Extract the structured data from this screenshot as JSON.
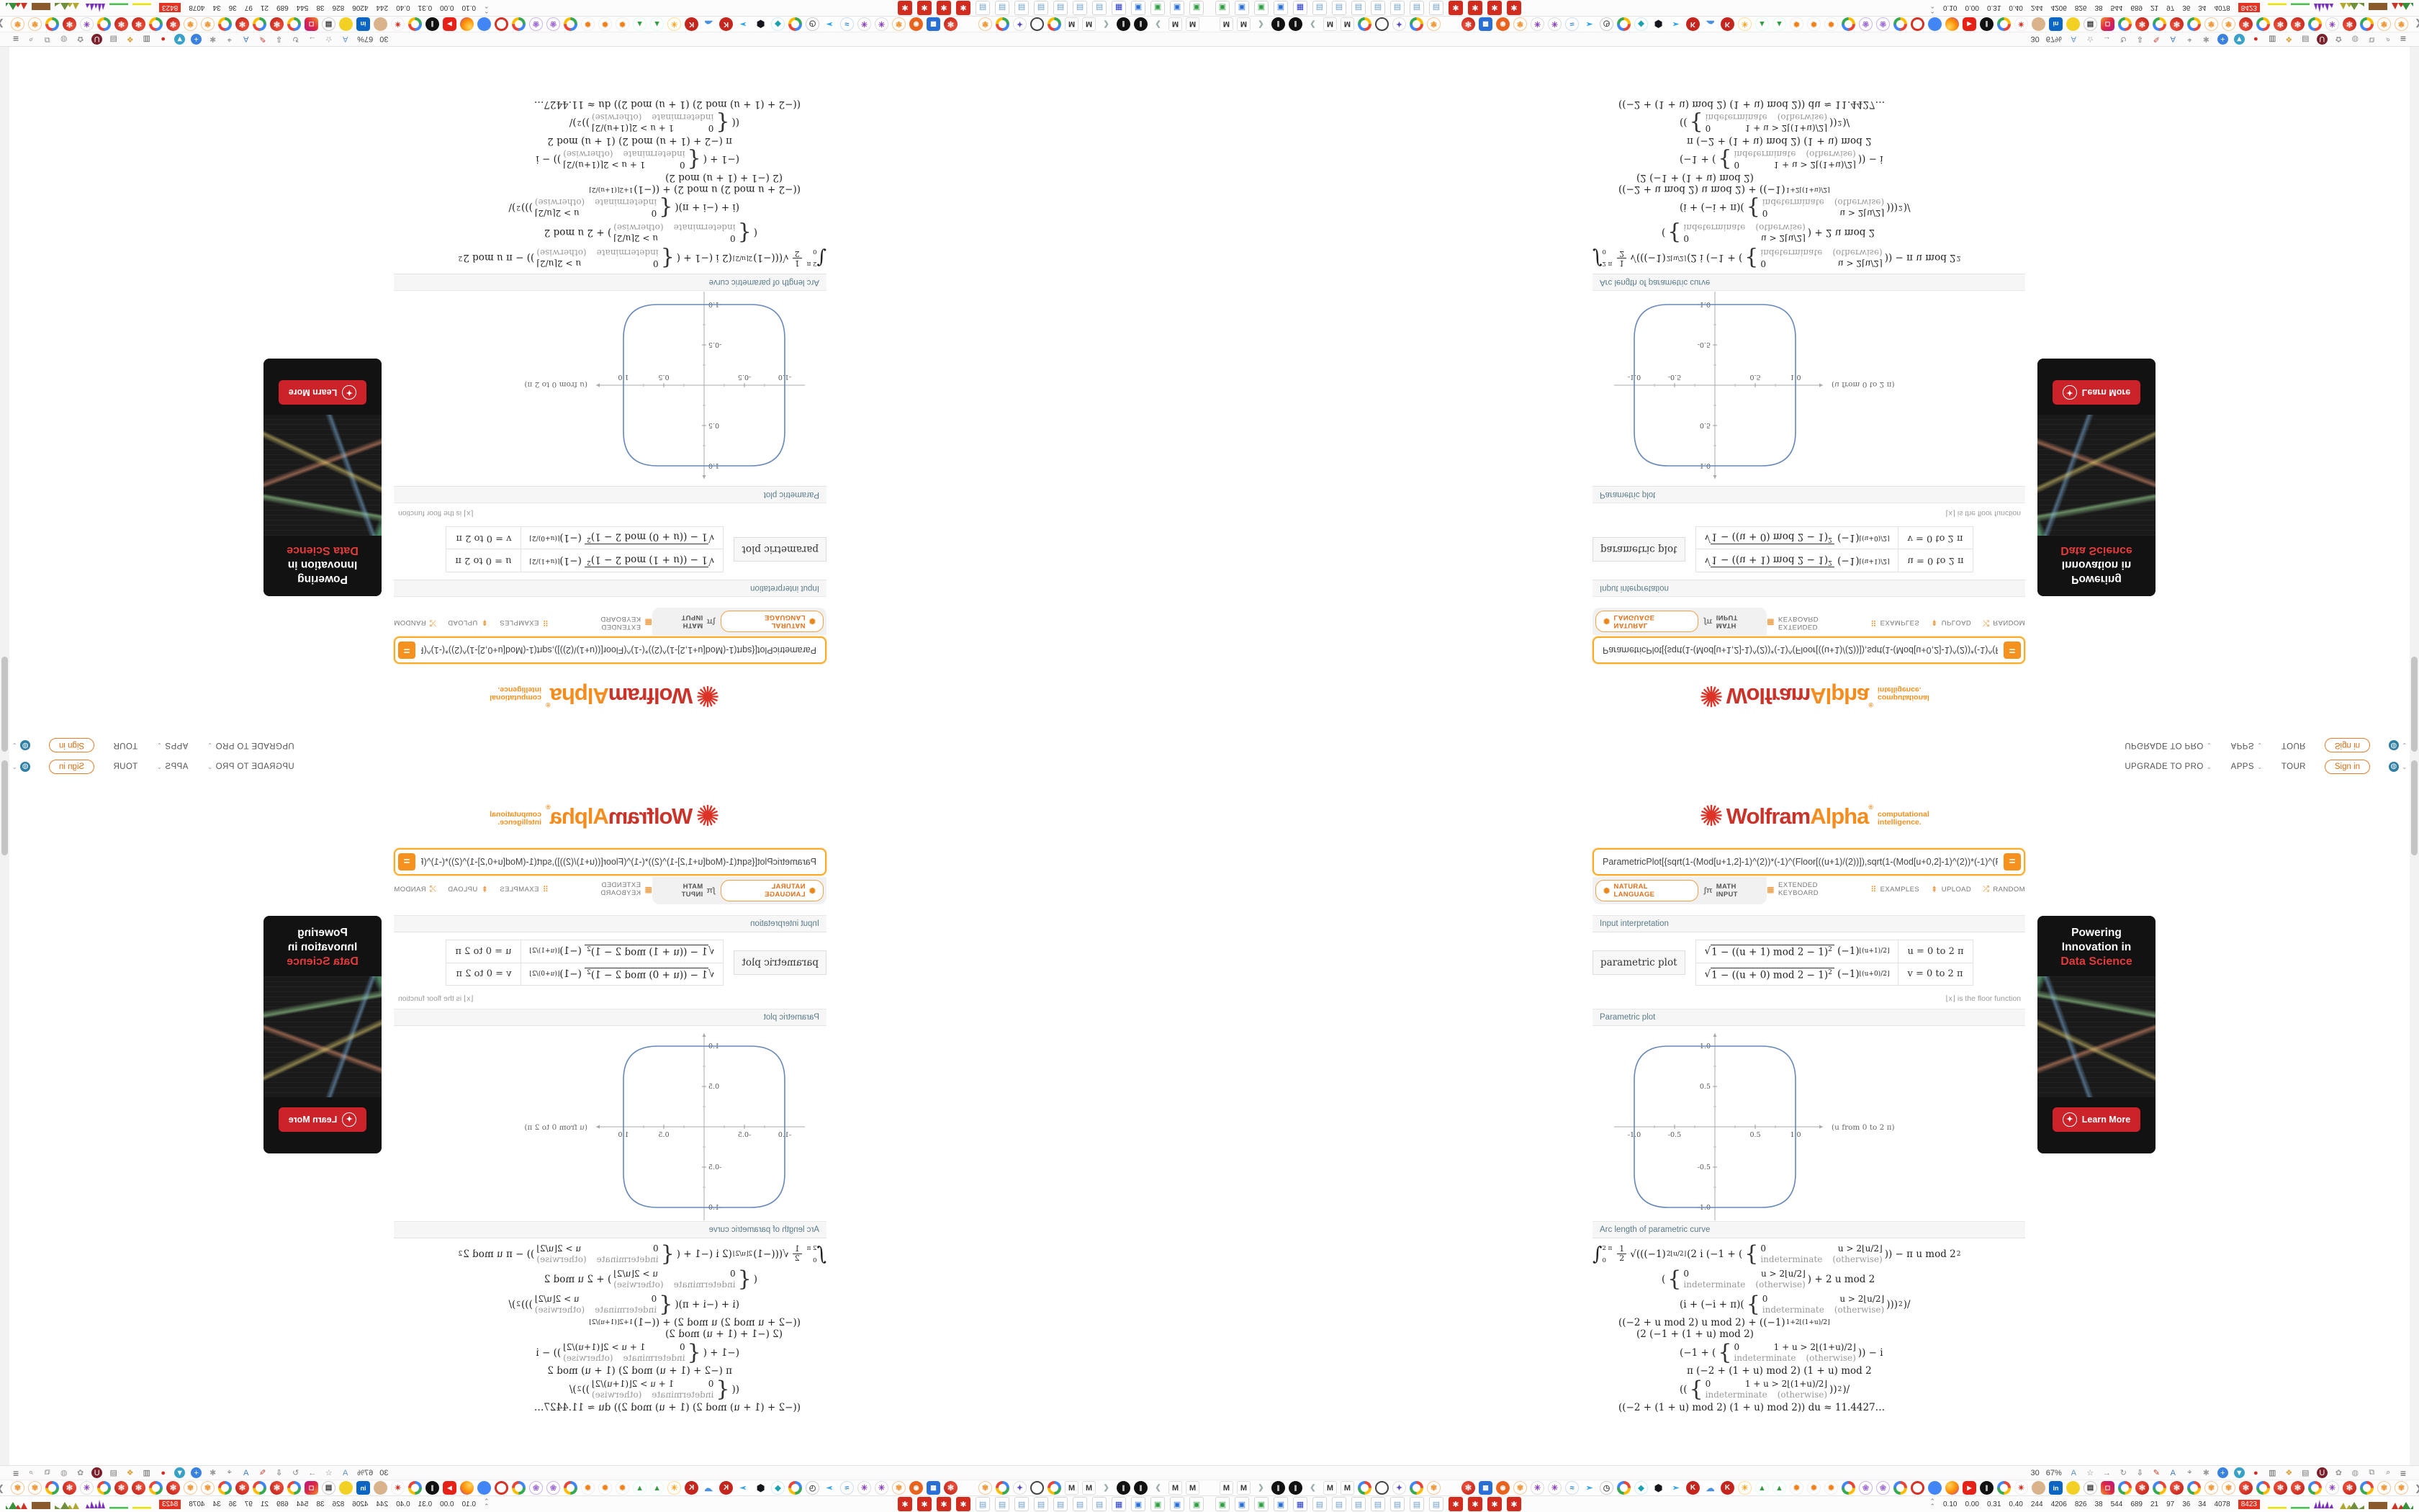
{
  "chrome": {
    "toolbar": {
      "zoom_text": "30",
      "percent": "67%",
      "menu_icon": "≡",
      "icons": [
        {
          "name": "translate-icon",
          "g": "A",
          "c": "#5b8dd6"
        },
        {
          "name": "bookmark-star-icon",
          "g": "☆",
          "c": "#888"
        },
        {
          "name": "forward-icon",
          "g": "→",
          "c": "#888"
        },
        {
          "name": "reload-icon",
          "g": "↻",
          "c": "#888"
        },
        {
          "name": "download-icon",
          "g": "⇩",
          "c": "#555"
        },
        {
          "name": "highlighter-icon",
          "g": "✎",
          "c": "#c0392b"
        },
        {
          "name": "translate-blue-icon",
          "g": "A",
          "c": "#3c78c8"
        },
        {
          "name": "mouse-gesture-icon",
          "g": "⌖",
          "c": "#777"
        },
        {
          "name": "settings-small-icon",
          "g": "✱",
          "c": "#999"
        },
        {
          "name": "add-extension-icon",
          "g": "+",
          "c": "#fff",
          "bg": "#3b82e0"
        },
        {
          "name": "shield-icon",
          "g": "▼",
          "c": "#fff",
          "bg": "#38a1c8"
        },
        {
          "name": "record-icon",
          "g": "●",
          "c": "#d22c20"
        },
        {
          "name": "columns-icon",
          "g": "▥",
          "c": "#555"
        },
        {
          "name": "sync-icon",
          "g": "❖",
          "c": "#d8a23a"
        },
        {
          "name": "notes-icon",
          "g": "▤",
          "c": "#777"
        },
        {
          "name": "ublock-icon",
          "g": "U",
          "c": "#fff",
          "bg": "#7a1f2b"
        },
        {
          "name": "extension-flower-icon",
          "g": "✿",
          "c": "#999"
        },
        {
          "name": "web-globe-icon",
          "g": "◍",
          "c": "#999"
        },
        {
          "name": "popup-window-icon",
          "g": "⧉",
          "c": "#888"
        },
        {
          "name": "search-icon",
          "g": "⌕",
          "c": "#666"
        }
      ]
    },
    "tabbar": {
      "overflow_next": "❯",
      "overflow_up": "⌃",
      "favicons": [
        "m",
        "m",
        "media-next",
        "pauseb",
        "pauseb",
        "media-prev",
        "m",
        "m",
        "google",
        "target",
        "knot",
        "chrome-c",
        "flower",
        "gap",
        "wolfram",
        "cart",
        "radio",
        "flower",
        "spiro",
        "spiro",
        "wave",
        "bird",
        "clock",
        "chrome-c",
        "cyan",
        "hex",
        "bird",
        "kred",
        "cloud",
        "kred",
        "suns",
        "mountain",
        "mountain",
        "gearo",
        "gearo",
        "gearo",
        "google",
        "pflower",
        "pflower",
        "google",
        "redo",
        "bluec",
        "firefox",
        "youtube",
        "pauseb",
        "google",
        "redstar",
        "avatar",
        "linkedin",
        "pacman",
        "news",
        "instagram",
        "google",
        "wolfram",
        "google",
        "wolfram",
        "google",
        "flower",
        "flower",
        "wolfram",
        "google",
        "wolfram",
        "wolfram",
        "google",
        "spiro",
        "wolfram",
        "google",
        "flower",
        "flower"
      ]
    },
    "statusbar": {
      "expand_icon": "⌃",
      "numbers": [
        "0.10",
        "0.00",
        "0.31",
        "0.40",
        "244",
        "4206",
        "826",
        "38",
        "544",
        "689",
        "21",
        "97",
        "36",
        "34",
        "4078"
      ],
      "badge": "8423",
      "sparklines": [
        {
          "name": "yellow-line",
          "type": "line",
          "color": "#e8e400",
          "w": 26
        },
        {
          "name": "green-line",
          "type": "line",
          "color": "#44c24a",
          "w": 26
        },
        {
          "name": "purple-peaks",
          "type": "peaks",
          "color": "#7b2fbe",
          "w": 30
        },
        {
          "name": "olive-mountains",
          "type": "mountains",
          "color": "#b0a832",
          "color2": "#6f8f3a",
          "w": 34
        },
        {
          "name": "brown-block",
          "type": "block",
          "color": "#8a5a2b",
          "w": 26
        },
        {
          "name": "red-green-mountains",
          "type": "mountains",
          "color": "#cc3322",
          "color2": "#3a8f3a",
          "w": 30
        }
      ],
      "taskbar_icons": [
        {
          "name": "monitor-green-icon",
          "g": "▣",
          "c": "#2f9e44"
        },
        {
          "name": "monitor-blue-icon",
          "g": "▣",
          "c": "#2a6fd6"
        },
        {
          "name": "monitor-green2-icon",
          "g": "▣",
          "c": "#2f9e44"
        },
        {
          "name": "monitor-blue2-icon",
          "g": "▣",
          "c": "#2a6fd6"
        },
        {
          "name": "floppy-icon",
          "g": "▦",
          "c": "#2438c8"
        },
        {
          "name": "document-icon",
          "g": "▤",
          "c": "#6f9ec8"
        },
        {
          "name": "document-icon",
          "g": "▤",
          "c": "#6f9ec8"
        },
        {
          "name": "document-icon",
          "g": "▤",
          "c": "#6f9ec8"
        },
        {
          "name": "document-icon",
          "g": "▤",
          "c": "#6f9ec8"
        },
        {
          "name": "document-icon",
          "g": "▤",
          "c": "#6f9ec8"
        },
        {
          "name": "document-icon",
          "g": "▤",
          "c": "#6f9ec8"
        },
        {
          "name": "document-icon",
          "g": "▤",
          "c": "#6f9ec8"
        },
        {
          "name": "gear-red-icon",
          "g": "✱",
          "c": "#fff",
          "bg": "#d22c20"
        },
        {
          "name": "gear-red-icon",
          "g": "✱",
          "c": "#fff",
          "bg": "#d22c20"
        },
        {
          "name": "gear-red-icon",
          "g": "✱",
          "c": "#fff",
          "bg": "#d22c20"
        },
        {
          "name": "gear-red-icon",
          "g": "✱",
          "c": "#fff",
          "bg": "#d22c20"
        }
      ]
    }
  },
  "page": {
    "header": {
      "items": [
        "UPGRADE TO PRO",
        "APPS",
        "TOUR"
      ],
      "dropdown_flags": [
        true,
        true,
        false
      ],
      "sign_in": "Sign in",
      "chevron": "⌄"
    },
    "logo": {
      "star": "✺",
      "brand_left": "Wolfram",
      "brand_right": "Alpha",
      "reg": "®",
      "tagline_line1": "computational",
      "tagline_line2": "intelligence."
    },
    "search": {
      "value": "ParametricPlot[{sqrt(1-(Mod[u+1,2]-1)^(2))*(-1)^(Floor[((u+1)/(2))]),sqrt(1-(Mod[u+0,2]-1)^(2))*(-1)^(Floor",
      "submit_label": "="
    },
    "modes": {
      "natural_language": "NATURAL LANGUAGE",
      "math_input": "MATH INPUT",
      "math_input_icon": "∫π",
      "right_items": [
        {
          "icon": "keyboard-icon",
          "glyph": "▦",
          "label": "EXTENDED KEYBOARD"
        },
        {
          "icon": "examples-grid-icon",
          "glyph": "⠿",
          "label": "EXAMPLES"
        },
        {
          "icon": "upload-icon",
          "glyph": "⇞",
          "label": "UPLOAD"
        },
        {
          "icon": "random-icon",
          "glyph": "⤮",
          "label": "RANDOM"
        }
      ]
    },
    "interpretation": {
      "title": "Input interpretation",
      "badge": "parametric plot",
      "rows": [
        {
          "radicand": "1 − ((u + 1) mod 2 − 1)",
          "power": "2",
          "mult": "(−1)",
          "exponent": "⌊(u+1)/2⌋",
          "range": "u = 0 to 2 π"
        },
        {
          "radicand": "1 − ((u + 0) mod 2 − 1)",
          "power": "2",
          "mult": "(−1)",
          "exponent": "⌊(u+0)/2⌋",
          "range": "v = 0 to 2 π"
        }
      ],
      "footnote": "⌊x⌋ is the floor function"
    },
    "plot": {
      "title": "Parametric plot",
      "axis_note": "(u from 0 to 2 π)",
      "chart_data": {
        "type": "line",
        "subtype": "parametric-curve",
        "x_expression": "sqrt(1-((u+1) mod 2 - 1)^2) * (-1)^floor((u+1)/2)",
        "y_expression": "sqrt(1-((u+0) mod 2 - 1)^2) * (-1)^floor((u+0)/2)",
        "u_range": [
          0,
          6.2832
        ],
        "xlim": [
          -1.25,
          1.3
        ],
        "ylim": [
          -1.15,
          1.15
        ],
        "x_ticks": [
          -1.0,
          -0.5,
          0.5,
          1.0
        ],
        "y_ticks": [
          -1.0,
          -0.5,
          0.5,
          1.0
        ],
        "x_tick_labels": [
          "-1.0",
          "-0.5",
          "0.5",
          "1.0"
        ],
        "y_tick_labels": [
          "-1.0",
          "-0.5",
          "0.5",
          "1.0"
        ],
        "shape": "rounded square through (±1,0),(0,±1) with corner arcs",
        "curve_color": "#6688bb",
        "annotation": "(u from 0 to 2 π)",
        "grid": false,
        "legend": "none"
      }
    },
    "arc": {
      "title": "Arc length of parametric curve",
      "lines": [
        {
          "indent": 0,
          "segs": [
            {
              "t": "int",
              "hi": "2 π",
              "lo": "0"
            },
            {
              "t": "frac",
              "n": "1",
              "d": "2"
            },
            {
              "t": "txt",
              "v": "√(((−1)"
            },
            {
              "t": "sup",
              "v": "2⌊u/2⌋"
            },
            {
              "t": "txt",
              "v": " (2 i (−1 + ("
            },
            {
              "t": "piece",
              "a": "0",
              "ac": "u > 2⌊u/2⌋",
              "b": "indeterminate",
              "bc": "(otherwise)"
            },
            {
              "t": "txt",
              "v": ")) − π u mod 2"
            },
            {
              "t": "sup",
              "v": "2"
            }
          ]
        },
        {
          "indent": 95,
          "segs": [
            {
              "t": "txt",
              "v": "("
            },
            {
              "t": "piece",
              "a": "0",
              "ac": "u > 2⌊u/2⌋",
              "b": "indeterminate",
              "bc": "(otherwise)"
            },
            {
              "t": "txt",
              "v": ") + 2 u mod 2"
            }
          ]
        },
        {
          "indent": 120,
          "segs": [
            {
              "t": "txt",
              "v": "(i + (−i + π)("
            },
            {
              "t": "piece",
              "a": "0",
              "ac": "u > 2⌊u/2⌋",
              "b": "indeterminate",
              "bc": "(otherwise)"
            },
            {
              "t": "txt",
              "v": ")))"
            },
            {
              "t": "sup",
              "v": "2"
            },
            {
              "t": "txt",
              "v": ")/"
            }
          ]
        },
        {
          "indent": 35,
          "segs": [
            {
              "t": "txt",
              "v": "((−2 + u mod 2) u mod 2) + ((−1)"
            },
            {
              "t": "sup",
              "v": "1+2⌊(1+u)/2⌋"
            }
          ]
        },
        {
          "indent": 60,
          "segs": [
            {
              "t": "txt",
              "v": "(2 (−1 + (1 + u) mod 2)"
            }
          ]
        },
        {
          "indent": 120,
          "segs": [
            {
              "t": "txt",
              "v": "(−1 + ("
            },
            {
              "t": "piece",
              "a": "0",
              "ac": "1 + u > 2⌊(1+u)/2⌋",
              "b": "indeterminate",
              "bc": "(otherwise)"
            },
            {
              "t": "txt",
              "v": ")) − i"
            }
          ]
        },
        {
          "indent": 130,
          "segs": [
            {
              "t": "txt",
              "v": "π (−2 + (1 + u) mod 2) (1 + u) mod 2"
            }
          ]
        },
        {
          "indent": 120,
          "segs": [
            {
              "t": "txt",
              "v": "(("
            },
            {
              "t": "piece",
              "a": "0",
              "ac": "1 + u > 2⌊(1+u)/2⌋",
              "b": "indeterminate",
              "bc": "(otherwise)"
            },
            {
              "t": "txt",
              "v": "))"
            },
            {
              "t": "sup",
              "v": "2"
            },
            {
              "t": "txt",
              "v": ")/"
            }
          ]
        },
        {
          "indent": 35,
          "segs": [
            {
              "t": "txt",
              "v": "((−2 + (1 + u) mod 2) (1 + u) mod 2)) du ≈ 11.4427…"
            }
          ]
        }
      ]
    },
    "ad": {
      "line1": "Powering",
      "line2": "Innovation in",
      "line3": "Data Science",
      "cta": "Learn More",
      "wolf_glyph": "✦"
    }
  }
}
